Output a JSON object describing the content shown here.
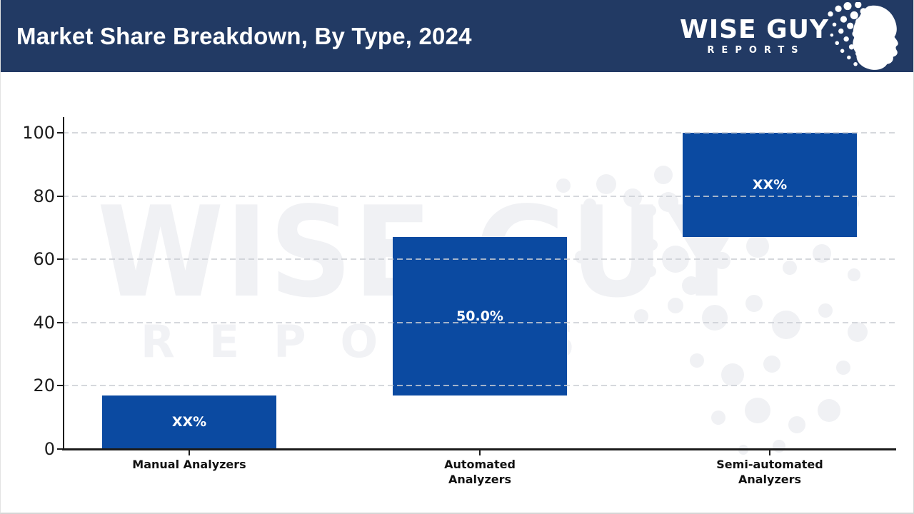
{
  "header": {
    "title": "Market Share Breakdown, By Type, 2024",
    "logo": {
      "name": "WISE GUY",
      "tagline": "REPORTS"
    }
  },
  "watermark": {
    "name": "WISE GUY",
    "tagline": "REPORTS"
  },
  "chart_data": {
    "type": "bar",
    "variant": "waterfall",
    "title": "Market Share Breakdown, By Type, 2024",
    "categories": [
      "Manual Analyzers",
      "Automated\nAnalyzers",
      "Semi-automated\nAnalyzers"
    ],
    "segments": [
      {
        "category": "Manual Analyzers",
        "start": 0,
        "end": 17,
        "value": 17,
        "value_label": "XX%"
      },
      {
        "category": "Automated Analyzers",
        "start": 17,
        "end": 67,
        "value": 50,
        "value_label": "50.0%"
      },
      {
        "category": "Semi-automated Analyzers",
        "start": 67,
        "end": 100,
        "value": 33,
        "value_label": "XX%"
      }
    ],
    "y_ticks": [
      0,
      20,
      40,
      60,
      80,
      100
    ],
    "ylim": [
      0,
      105
    ],
    "xlabel": "",
    "ylabel": "",
    "grid": {
      "axis": "y",
      "style": "dashed",
      "drawn_over_bars": true
    },
    "legend": "none",
    "colors": {
      "bar": "#0B4AA1",
      "header_bg": "#223A64",
      "title_text": "#FFFFFF",
      "axis": "#1B1B1B",
      "gridline": "#CBCED4",
      "tick_label": "#1C1C1C",
      "bar_label": "#FFFFFF",
      "watermark": "#F0F1F4"
    }
  }
}
